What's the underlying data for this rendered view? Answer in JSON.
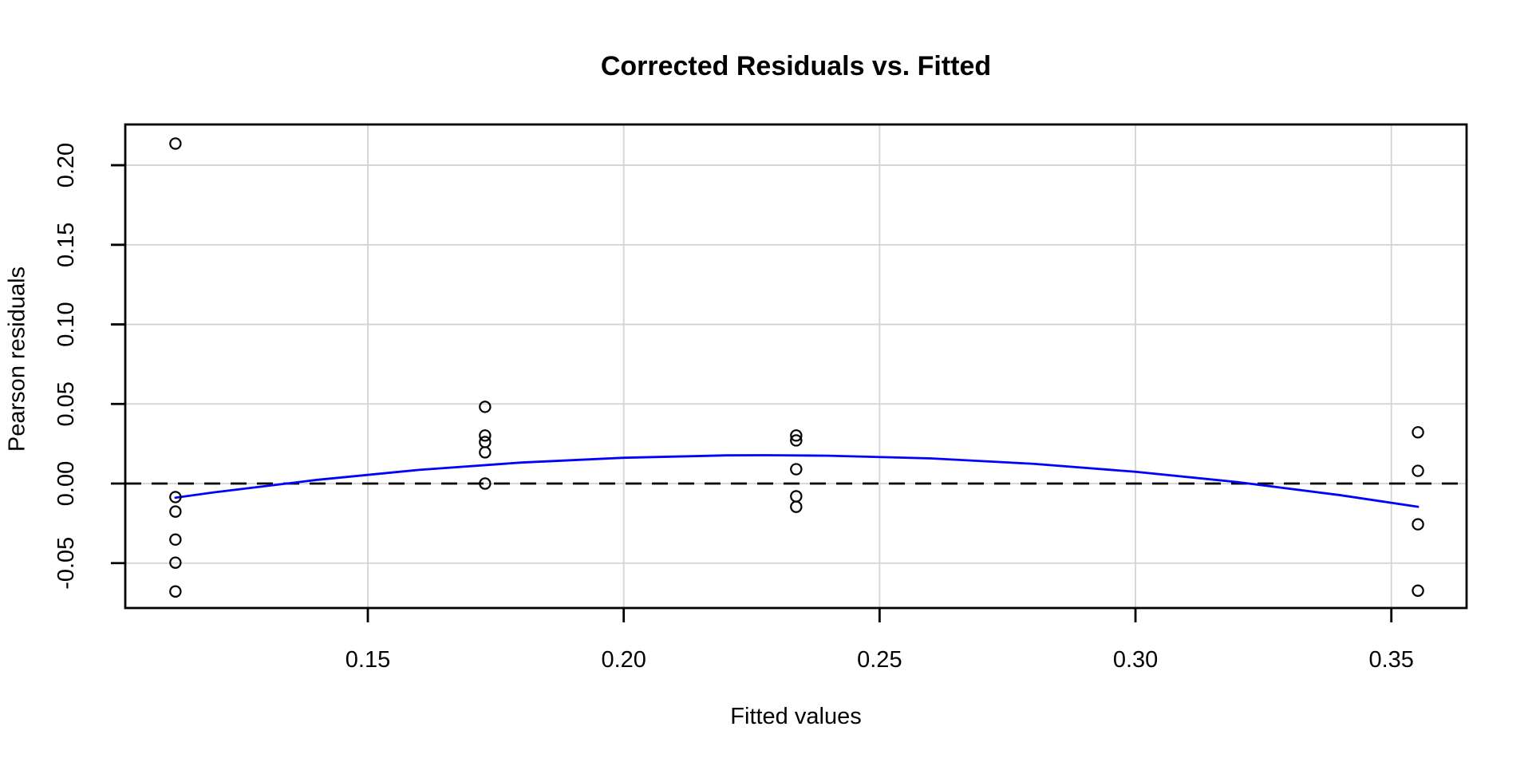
{
  "chart_data": {
    "type": "scatter",
    "title": "Corrected Residuals vs. Fitted",
    "xlabel": "Fitted values",
    "ylabel": "Pearson residuals",
    "xlim": [
      0.1026,
      0.3647
    ],
    "ylim": [
      -0.0782,
      0.2256
    ],
    "x_ticks": [
      0.15,
      0.2,
      0.25,
      0.3,
      0.35
    ],
    "x_tick_labels": [
      "0.15",
      "0.20",
      "0.25",
      "0.30",
      "0.35"
    ],
    "y_ticks": [
      -0.05,
      0.0,
      0.05,
      0.1,
      0.15,
      0.2
    ],
    "y_tick_labels": [
      "-0.05",
      "0.00",
      "0.05",
      "0.10",
      "0.15",
      "0.20"
    ],
    "grid": true,
    "legend": "none",
    "points": [
      {
        "x": 0.1124,
        "y": 0.2136
      },
      {
        "x": 0.1124,
        "y": -0.0085
      },
      {
        "x": 0.1124,
        "y": -0.0176
      },
      {
        "x": 0.1124,
        "y": -0.0352
      },
      {
        "x": 0.1124,
        "y": -0.0497
      },
      {
        "x": 0.1124,
        "y": -0.0678
      },
      {
        "x": 0.1729,
        "y": 0.0482
      },
      {
        "x": 0.1729,
        "y": 0.0302
      },
      {
        "x": 0.1729,
        "y": 0.0261
      },
      {
        "x": 0.1729,
        "y": 0.0196
      },
      {
        "x": 0.1729,
        "y": 0.0
      },
      {
        "x": 0.2337,
        "y": 0.0302
      },
      {
        "x": 0.2337,
        "y": 0.0271
      },
      {
        "x": 0.2337,
        "y": 0.009
      },
      {
        "x": 0.2337,
        "y": -0.008
      },
      {
        "x": 0.2337,
        "y": -0.0146
      },
      {
        "x": 0.3552,
        "y": 0.0322
      },
      {
        "x": 0.3552,
        "y": 0.008
      },
      {
        "x": 0.3552,
        "y": -0.0256
      },
      {
        "x": 0.3552,
        "y": -0.0673
      }
    ],
    "zero_line": {
      "y": 0.0,
      "style": "dashed",
      "color": "#000000"
    },
    "smooth_line": {
      "color": "#0000ff",
      "points": [
        [
          0.1124,
          -0.0089
        ],
        [
          0.12,
          -0.0055
        ],
        [
          0.14,
          0.0023
        ],
        [
          0.16,
          0.0086
        ],
        [
          0.18,
          0.0132
        ],
        [
          0.2,
          0.0162
        ],
        [
          0.22,
          0.0177
        ],
        [
          0.228,
          0.0178
        ],
        [
          0.24,
          0.0175
        ],
        [
          0.26,
          0.0158
        ],
        [
          0.28,
          0.0124
        ],
        [
          0.3,
          0.0074
        ],
        [
          0.32,
          0.0009
        ],
        [
          0.34,
          -0.0073
        ],
        [
          0.3552,
          -0.0146
        ]
      ]
    },
    "colors": {
      "point_stroke": "#000000",
      "grid": "#d3d3d3",
      "axis": "#000000",
      "background": "#ffffff"
    }
  }
}
